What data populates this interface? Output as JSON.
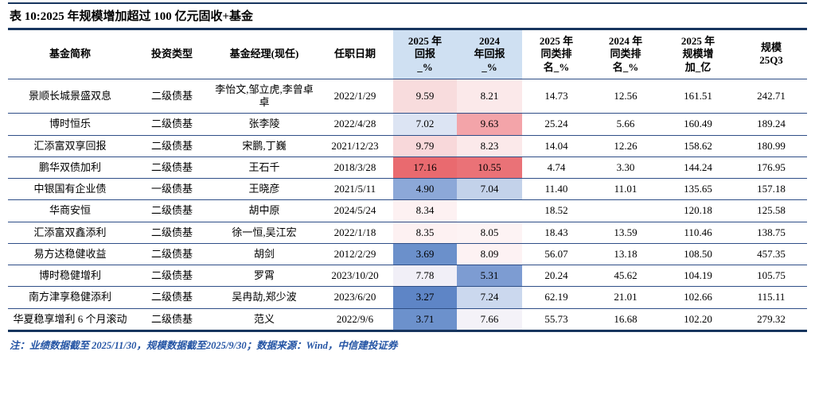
{
  "title": "表 10:2025 年规模增加超过 100 亿元固收+基金",
  "note": "注：业绩数据截至 2025/11/30，规模数据截至2025/9/30；数据来源：Wind，中信建投证券",
  "colors": {
    "border_heavy": "#17355e",
    "border_light": "#2e4e87",
    "header_highlight": "#cfe0f2",
    "note_text": "#2454a4"
  },
  "table": {
    "headers": [
      "基金简称",
      "投资类型",
      "基金经理(现任)",
      "任职日期",
      "2025 年\n回报\n_%",
      "2024\n年回报\n_%",
      "2025 年\n同类排\n名_%",
      "2024 年\n同类排\n名_%",
      "2025 年\n规模增\n加_亿",
      "规模\n25Q3"
    ],
    "rows": [
      {
        "name": "景顺长城景盛双息",
        "type": "二级债基",
        "manager": "李怡文,邹立虎,李曾卓卓",
        "date": "2022/1/29",
        "ret2025": "9.59",
        "ret2024": "8.21",
        "rank2025": "14.73",
        "rank2024": "12.56",
        "increase": "161.51",
        "scale": "242.71",
        "ret2025_color": "#f8dcdd",
        "ret2024_color": "#fbe9ea"
      },
      {
        "name": "博时恒乐",
        "type": "二级债基",
        "manager": "张李陵",
        "date": "2022/4/28",
        "ret2025": "7.02",
        "ret2024": "9.63",
        "rank2025": "25.24",
        "rank2024": "5.66",
        "increase": "160.49",
        "scale": "189.24",
        "ret2025_color": "#dce4f3",
        "ret2024_color": "#f3a4a9"
      },
      {
        "name": "汇添富双享回报",
        "type": "二级债基",
        "manager": "宋鹏,丁巍",
        "date": "2021/12/23",
        "ret2025": "9.79",
        "ret2024": "8.23",
        "rank2025": "14.04",
        "rank2024": "12.26",
        "increase": "158.62",
        "scale": "180.99",
        "ret2025_color": "#f8d8da",
        "ret2024_color": "#fbe9ea"
      },
      {
        "name": "鹏华双债加利",
        "type": "二级债基",
        "manager": "王石千",
        "date": "2018/3/28",
        "ret2025": "17.16",
        "ret2024": "10.55",
        "rank2025": "4.74",
        "rank2024": "3.30",
        "increase": "144.24",
        "scale": "176.95",
        "ret2025_color": "#e96a6f",
        "ret2024_color": "#ea7277"
      },
      {
        "name": "中银国有企业债",
        "type": "一级债基",
        "manager": "王晓彦",
        "date": "2021/5/11",
        "ret2025": "4.90",
        "ret2024": "7.04",
        "rank2025": "11.40",
        "rank2024": "11.01",
        "increase": "135.65",
        "scale": "157.18",
        "ret2025_color": "#8ca8d8",
        "ret2024_color": "#c3d2ea"
      },
      {
        "name": "华商安恒",
        "type": "二级债基",
        "manager": "胡中原",
        "date": "2024/5/24",
        "ret2025": "8.34",
        "ret2024": "",
        "rank2025": "18.52",
        "rank2024": "",
        "increase": "120.18",
        "scale": "125.58",
        "ret2025_color": "#fdf1f2",
        "ret2024_color": ""
      },
      {
        "name": "汇添富双鑫添利",
        "type": "二级债基",
        "manager": "徐一恒,吴江宏",
        "date": "2022/1/18",
        "ret2025": "8.35",
        "ret2024": "8.05",
        "rank2025": "18.43",
        "rank2024": "13.59",
        "increase": "110.46",
        "scale": "138.75",
        "ret2025_color": "#fdf1f2",
        "ret2024_color": "#fdf3f4"
      },
      {
        "name": "易方达稳健收益",
        "type": "二级债基",
        "manager": "胡剑",
        "date": "2012/2/29",
        "ret2025": "3.69",
        "ret2024": "8.09",
        "rank2025": "56.07",
        "rank2024": "13.18",
        "increase": "108.50",
        "scale": "457.35",
        "ret2025_color": "#6b90cb",
        "ret2024_color": "#fdf2f3"
      },
      {
        "name": "博时稳健增利",
        "type": "二级债基",
        "manager": "罗霄",
        "date": "2023/10/20",
        "ret2025": "7.78",
        "ret2024": "5.31",
        "rank2025": "20.24",
        "rank2024": "45.62",
        "increase": "104.19",
        "scale": "105.75",
        "ret2025_color": "#f1eff7",
        "ret2024_color": "#7d9cd2"
      },
      {
        "name": "南方津享稳健添利",
        "type": "二级债基",
        "manager": "吴冉劼,郑少波",
        "date": "2023/6/20",
        "ret2025": "3.27",
        "ret2024": "7.24",
        "rank2025": "62.19",
        "rank2024": "21.01",
        "increase": "102.66",
        "scale": "115.11",
        "ret2025_color": "#5e85c6",
        "ret2024_color": "#cbd8ee"
      },
      {
        "name": "华夏稳享增利 6 个月滚动",
        "type": "二级债基",
        "manager": "范义",
        "date": "2022/9/6",
        "ret2025": "3.71",
        "ret2024": "7.66",
        "rank2025": "55.73",
        "rank2024": "16.68",
        "increase": "102.20",
        "scale": "279.32",
        "ret2025_color": "#6c91cc",
        "ret2024_color": "#f4f2f8"
      }
    ]
  }
}
